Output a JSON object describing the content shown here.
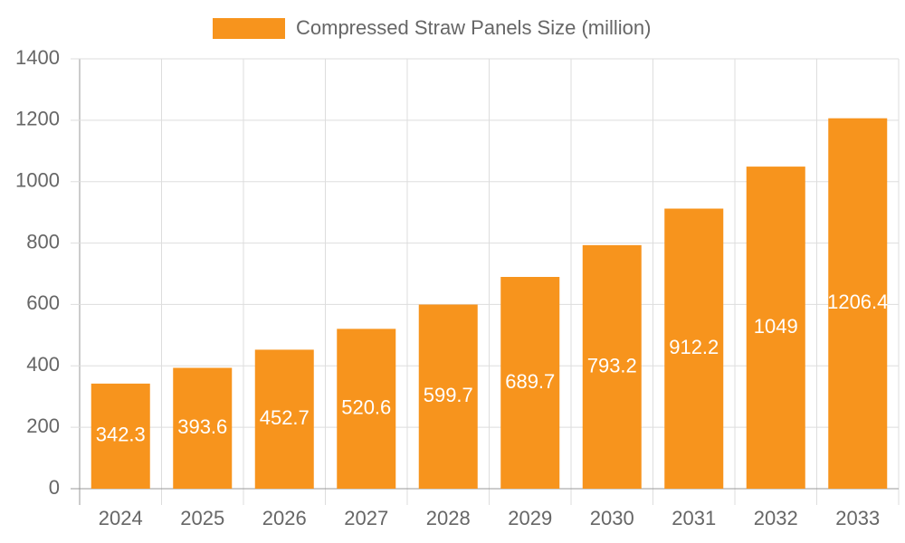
{
  "chart_data": {
    "type": "bar",
    "categories": [
      "2024",
      "2025",
      "2026",
      "2027",
      "2028",
      "2029",
      "2030",
      "2031",
      "2032",
      "2033"
    ],
    "series": [
      {
        "name": "Compressed Straw Panels Size (million)",
        "color": "#f7941d",
        "values": [
          342.3,
          393.6,
          452.7,
          520.6,
          599.7,
          689.7,
          793.2,
          912.2,
          1049,
          1206.4
        ]
      }
    ],
    "ylim": [
      0,
      1400
    ],
    "yticks": [
      0,
      200,
      400,
      600,
      800,
      1000,
      1200,
      1400
    ],
    "grid": true
  }
}
